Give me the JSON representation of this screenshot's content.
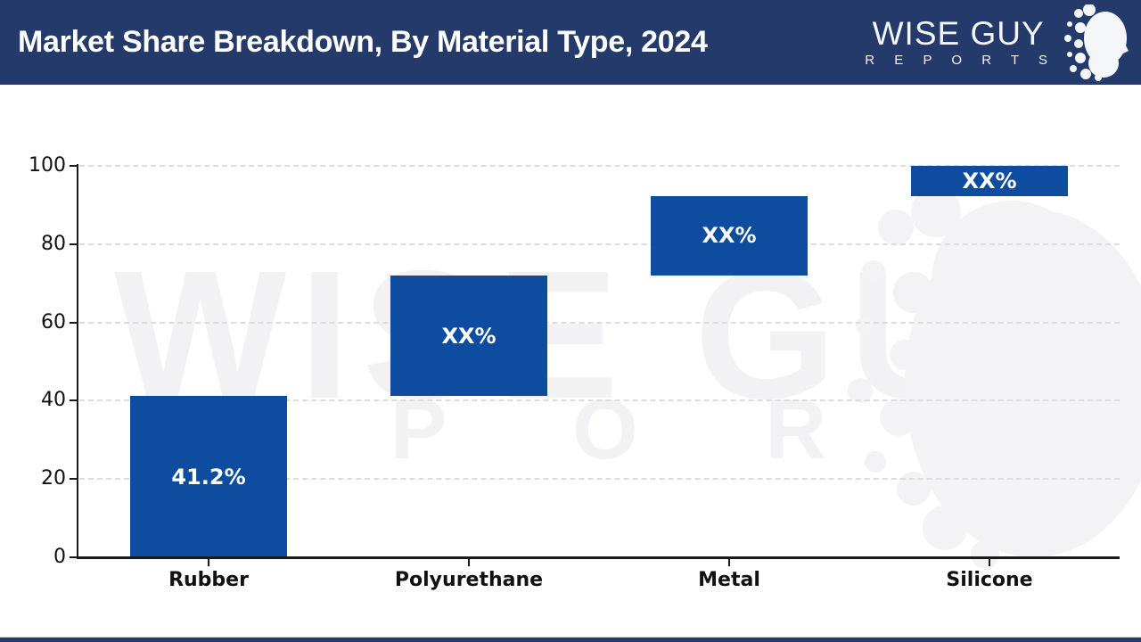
{
  "header": {
    "title": "Market Share Breakdown, By Material Type, 2024",
    "logo": {
      "line1": "WISE GUY",
      "line2": "R E P O R T S"
    }
  },
  "watermark": {
    "line1": "WISE GUY",
    "line2": "P O R T S"
  },
  "chart_data": {
    "type": "bar",
    "subtype": "waterfall",
    "title": "Market Share Breakdown, By Material Type, 2024",
    "categories": [
      "Rubber",
      "Polyurethane",
      "Metal",
      "Silicone"
    ],
    "segments": [
      {
        "category": "Rubber",
        "start": 0,
        "end": 41.2,
        "label": "41.2%"
      },
      {
        "category": "Polyurethane",
        "start": 41.2,
        "end": 72,
        "label": "XX%"
      },
      {
        "category": "Metal",
        "start": 72,
        "end": 92.3,
        "label": "XX%"
      },
      {
        "category": "Silicone",
        "start": 92.3,
        "end": 100,
        "label": "XX%"
      }
    ],
    "ylim": [
      0,
      100
    ],
    "yticks": [
      0,
      20,
      40,
      60,
      80,
      100
    ],
    "grid": "horizontal-dashed",
    "legend": "none",
    "bar_color": "#0d4c9f",
    "bar_label_color": "#ffffff"
  },
  "colors": {
    "header_navy": "#243a6b",
    "bar_blue": "#0d4c9f",
    "gridline_gray": "#dcdcdc",
    "axis_black": "#1a1a1a",
    "watermark_gray": "#f2f2f4"
  }
}
